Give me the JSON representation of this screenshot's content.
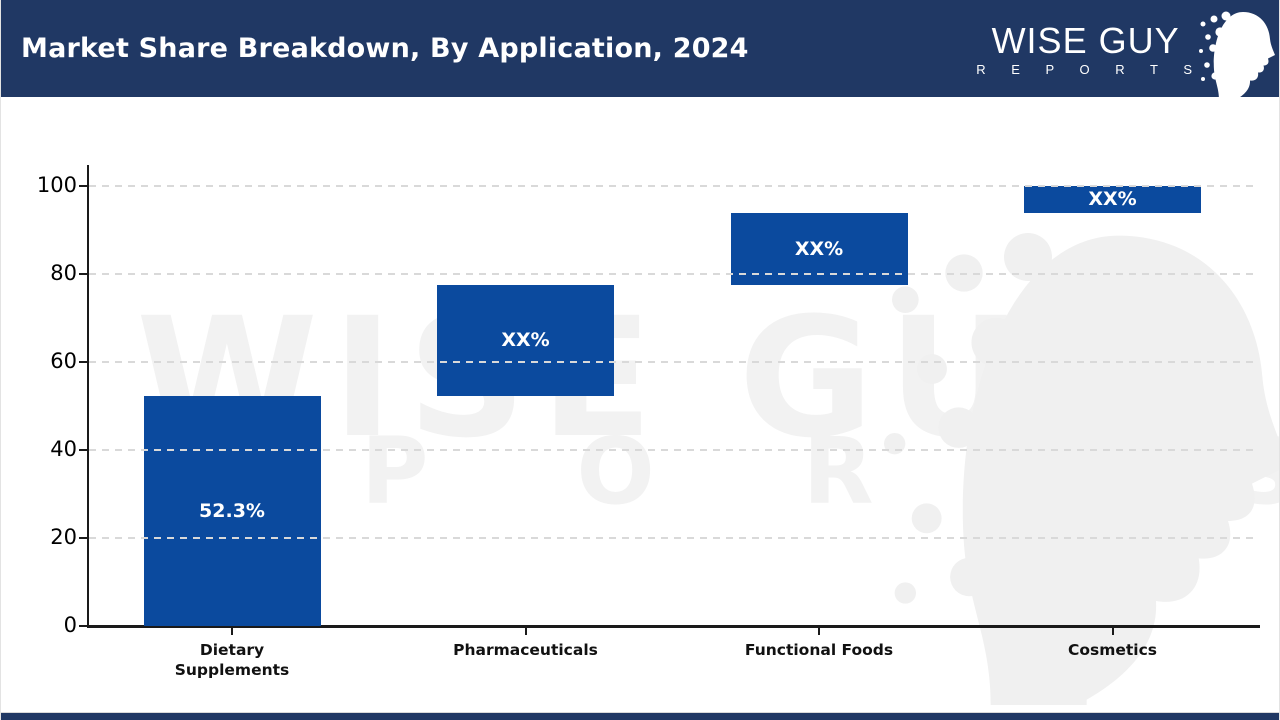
{
  "header": {
    "title": "Market Share Breakdown, By Application, 2024",
    "logo": {
      "line1": "WISE GUY",
      "line2": "R E P O R T S"
    }
  },
  "watermark": {
    "line1": "WISE GUY",
    "line2": "P O R T S"
  },
  "colors": {
    "header_bg": "#203864",
    "footer_bg": "#203864",
    "bar": "#0b4a9e",
    "grid": "#d9d9d9",
    "axis": "#1a1a1a",
    "bar_label_text": "#ffffff",
    "watermark": "#f2f2f2"
  },
  "chart_data": {
    "type": "bar",
    "subtype": "waterfall-stacked",
    "title": "Market Share Breakdown, By Application, 2024",
    "categories": [
      "Dietary\nSupplements",
      "Pharmaceuticals",
      "Functional Foods",
      "Cosmetics"
    ],
    "segments": [
      {
        "category": "Dietary Supplements",
        "start": 0,
        "end": 52.3,
        "label": "52.3%"
      },
      {
        "category": "Pharmaceuticals",
        "start": 52.3,
        "end": 77.5,
        "label": "XX%"
      },
      {
        "category": "Functional Foods",
        "start": 77.5,
        "end": 93.9,
        "label": "XX%"
      },
      {
        "category": "Cosmetics",
        "start": 93.9,
        "end": 100,
        "label": "XX%"
      }
    ],
    "ylim": [
      0,
      100
    ],
    "yticks": [
      0,
      20,
      40,
      60,
      80,
      100
    ],
    "grid": "horizontal dashed",
    "legend": "none",
    "bar_color": "#0b4a9e"
  }
}
